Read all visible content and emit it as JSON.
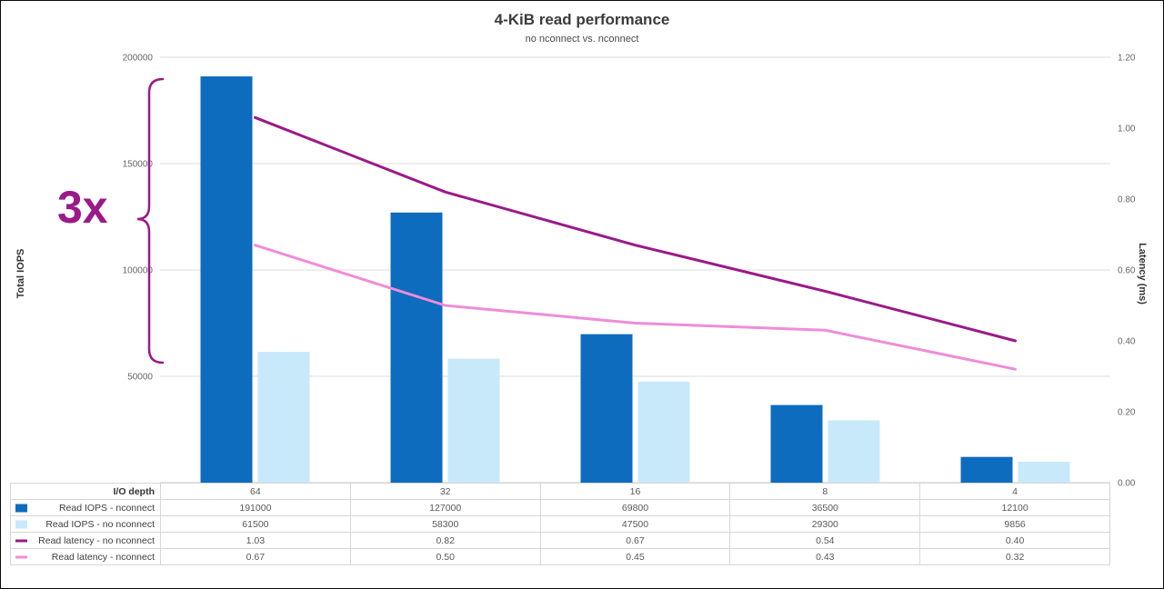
{
  "title": "4-KiB read performance",
  "subtitle": "no nconnect vs. nconnect",
  "annotation": {
    "label": "3x",
    "color": "#9B1989"
  },
  "axes": {
    "left": {
      "title": "Total IOPS",
      "max": 200000,
      "ticks": [
        {
          "value": 200000,
          "label": "200000"
        },
        {
          "value": 150000,
          "label": "150000"
        },
        {
          "value": 100000,
          "label": "100000"
        },
        {
          "value": 50000,
          "label": "50000"
        }
      ]
    },
    "right": {
      "title": "Latency (ms)",
      "max": 1.2,
      "ticks": [
        {
          "value": 1.2,
          "label": "1.20"
        },
        {
          "value": 1.0,
          "label": "1.00"
        },
        {
          "value": 0.8,
          "label": "0.80"
        },
        {
          "value": 0.6,
          "label": "0.60"
        },
        {
          "value": 0.4,
          "label": "0.40"
        },
        {
          "value": 0.2,
          "label": "0.20"
        },
        {
          "value": 0.0,
          "label": "0.00"
        }
      ]
    },
    "x": {
      "title": "I/O depth",
      "categories": [
        "64",
        "32",
        "16",
        "8",
        "4"
      ]
    }
  },
  "chart_data": {
    "type": "bar+line combo",
    "title": "4-KiB read performance",
    "subtitle": "no nconnect vs. nconnect",
    "categories": [
      64,
      32,
      16,
      8,
      4
    ],
    "xlabel": "I/O depth",
    "ylabel_left": "Total IOPS",
    "ylabel_right": "Latency (ms)",
    "ylim_left": [
      0,
      200000
    ],
    "ylim_right": [
      0,
      1.2
    ],
    "grid": "horizontal",
    "annotation": "3x",
    "series": [
      {
        "name": "Read IOPS - nconnect",
        "type": "bar",
        "axis": "left",
        "color": "#0D6CBE",
        "values": [
          191000,
          127000,
          69800,
          36500,
          12100
        ]
      },
      {
        "name": "Read IOPS - no nconnect",
        "type": "bar",
        "axis": "left",
        "color": "#C8E9F9",
        "values": [
          61500,
          58300,
          47500,
          29300,
          9856
        ]
      },
      {
        "name": "Read latency - no nconnect",
        "type": "line",
        "axis": "right",
        "color": "#9B1989",
        "values": [
          1.03,
          0.82,
          0.67,
          0.54,
          0.4
        ]
      },
      {
        "name": "Read latency - nconnect",
        "type": "line",
        "axis": "right",
        "color": "#EF8CD9",
        "values": [
          0.67,
          0.5,
          0.45,
          0.43,
          0.32
        ]
      }
    ]
  },
  "table": {
    "row_header": "I/O depth",
    "columns": [
      "64",
      "32",
      "16",
      "8",
      "4"
    ],
    "rows": [
      {
        "label": "Read IOPS - nconnect",
        "swatch": "bar",
        "color": "#0D6CBE",
        "values": [
          "191000",
          "127000",
          "69800",
          "36500",
          "12100"
        ]
      },
      {
        "label": "Read IOPS - no nconnect",
        "swatch": "bar",
        "color": "#C8E9F9",
        "values": [
          "61500",
          "58300",
          "47500",
          "29300",
          "9856"
        ]
      },
      {
        "label": "Read latency - no nconnect",
        "swatch": "line",
        "color": "#9B1989",
        "values": [
          "1.03",
          "0.82",
          "0.67",
          "0.54",
          "0.40"
        ]
      },
      {
        "label": "Read latency - nconnect",
        "swatch": "line",
        "color": "#EF8CD9",
        "values": [
          "0.67",
          "0.50",
          "0.45",
          "0.43",
          "0.32"
        ]
      }
    ]
  }
}
